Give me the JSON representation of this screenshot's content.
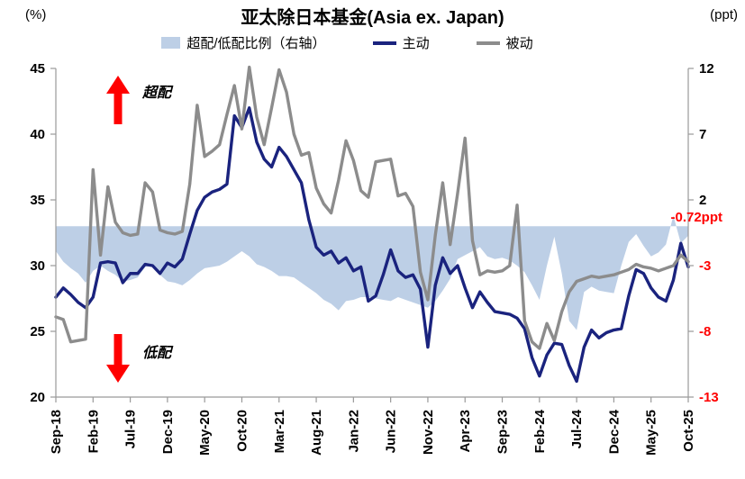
{
  "header": {
    "left_unit": "(%)",
    "title": "亚太除日本基金(Asia ex. Japan)",
    "right_unit": "(ppt)"
  },
  "legend": [
    {
      "label": "超配/低配比例（右轴）"
    },
    {
      "label": "主动"
    },
    {
      "label": "被动"
    }
  ],
  "annotations": {
    "overweight": "超配",
    "underweight": "低配",
    "latest_value": "-0.72ppt"
  },
  "colors": {
    "active_line": "#1A237E",
    "passive_line": "#8C8C8C",
    "ratio_area": "#BDCFE6",
    "red": "#FF0000",
    "axis": "#9A9A9A",
    "text": "#000000"
  },
  "chart_data": {
    "type": "line+area",
    "title": "亚太除日本基金(Asia ex. Japan)",
    "left_axis": {
      "unit": "%",
      "min": 20,
      "max": 45,
      "ticks": [
        20,
        25,
        30,
        35,
        40,
        45
      ]
    },
    "right_axis": {
      "unit": "ppt",
      "min": -13,
      "max": 12,
      "ticks": [
        -13,
        -8,
        -3,
        2,
        7,
        12
      ]
    },
    "x_label_every": 5,
    "x_tick_labels": [
      "Sep-18",
      "Feb-19",
      "Jul-19",
      "Dec-19",
      "May-20",
      "Oct-20",
      "Mar-21",
      "Aug-21",
      "Jan-22",
      "Jun-22",
      "Nov-22",
      "Apr-23",
      "Sep-23",
      "Feb-24",
      "Jul-24",
      "Dec-24",
      "May-25",
      "Oct-25"
    ],
    "categories": [
      "Sep-18",
      "Oct-18",
      "Nov-18",
      "Dec-18",
      "Jan-19",
      "Feb-19",
      "Mar-19",
      "Apr-19",
      "May-19",
      "Jun-19",
      "Jul-19",
      "Aug-19",
      "Sep-19",
      "Oct-19",
      "Nov-19",
      "Dec-19",
      "Jan-20",
      "Feb-20",
      "Mar-20",
      "Apr-20",
      "May-20",
      "Jun-20",
      "Jul-20",
      "Aug-20",
      "Sep-20",
      "Oct-20",
      "Nov-20",
      "Dec-20",
      "Jan-21",
      "Feb-21",
      "Mar-21",
      "Apr-21",
      "May-21",
      "Jun-21",
      "Jul-21",
      "Aug-21",
      "Sep-21",
      "Oct-21",
      "Nov-21",
      "Dec-21",
      "Jan-22",
      "Feb-22",
      "Mar-22",
      "Apr-22",
      "May-22",
      "Jun-22",
      "Jul-22",
      "Aug-22",
      "Sep-22",
      "Oct-22",
      "Nov-22",
      "Dec-22",
      "Jan-23",
      "Feb-23",
      "Mar-23",
      "Apr-23",
      "May-23",
      "Jun-23",
      "Jul-23",
      "Aug-23",
      "Sep-23",
      "Oct-23",
      "Nov-23",
      "Dec-23",
      "Jan-24",
      "Feb-24",
      "Mar-24",
      "Apr-24",
      "May-24",
      "Jun-24",
      "Jul-24",
      "Aug-24",
      "Sep-24",
      "Oct-24",
      "Nov-24",
      "Dec-24",
      "Jan-25",
      "Feb-25",
      "Mar-25",
      "Apr-25",
      "May-25",
      "Jun-25",
      "Jul-25",
      "Aug-25",
      "Sep-25",
      "Oct-25"
    ],
    "series": [
      {
        "name": "超配/低配比例（右轴）",
        "type": "area",
        "axis": "right",
        "color": "#BDCFE6",
        "values": [
          -1.9,
          -2.7,
          -3.2,
          -3.6,
          -4.3,
          -3.4,
          -3.0,
          -3.4,
          -3.7,
          -4.2,
          -4.1,
          -3.9,
          -3.1,
          -3.0,
          -3.7,
          -4.2,
          -4.3,
          -4.5,
          -4.1,
          -3.6,
          -3.2,
          -3.1,
          -3.0,
          -2.7,
          -2.3,
          -1.9,
          -2.3,
          -2.9,
          -3.1,
          -3.4,
          -3.8,
          -3.8,
          -3.9,
          -4.3,
          -4.7,
          -5.1,
          -5.6,
          -5.9,
          -6.4,
          -5.7,
          -5.6,
          -5.4,
          -5.4,
          -5.5,
          -5.6,
          -5.7,
          -5.4,
          -5.6,
          -5.8,
          -6.0,
          -6.2,
          -5.7,
          -4.9,
          -4.0,
          -2.5,
          -2.2,
          -1.9,
          -1.6,
          -2.3,
          -2.5,
          -2.4,
          -2.6,
          -3.0,
          -3.5,
          -4.5,
          -5.6,
          -3.0,
          -0.8,
          -3.6,
          -7.2,
          -7.9,
          -5.0,
          -4.6,
          -4.9,
          -5.0,
          -5.1,
          -3.0,
          -1.2,
          -0.6,
          -1.5,
          -2.3,
          -2.0,
          -1.4,
          0.8,
          -1.3,
          -0.72
        ]
      },
      {
        "name": "主动",
        "type": "line",
        "axis": "left",
        "color": "#1A237E",
        "values": [
          27.6,
          28.3,
          27.8,
          27.2,
          26.8,
          27.6,
          30.2,
          30.3,
          30.2,
          28.7,
          29.4,
          29.4,
          30.1,
          30.0,
          29.4,
          30.2,
          29.9,
          30.5,
          32.4,
          34.2,
          35.2,
          35.6,
          35.8,
          36.2,
          41.4,
          40.5,
          42.0,
          39.4,
          38.1,
          37.5,
          39.0,
          38.3,
          37.3,
          36.3,
          33.5,
          31.4,
          30.8,
          31.1,
          30.2,
          30.6,
          29.6,
          29.9,
          27.3,
          27.7,
          29.3,
          31.2,
          29.6,
          29.1,
          29.3,
          28.2,
          23.8,
          28.5,
          30.6,
          29.4,
          30.0,
          28.3,
          26.8,
          28.0,
          27.2,
          26.5,
          26.4,
          26.3,
          26.0,
          25.2,
          23.0,
          21.6,
          23.2,
          24.1,
          24.0,
          22.4,
          21.2,
          23.8,
          25.1,
          24.5,
          24.9,
          25.1,
          25.2,
          27.7,
          29.7,
          29.4,
          28.3,
          27.6,
          27.3,
          28.9,
          31.7,
          29.9
        ]
      },
      {
        "name": "被动",
        "type": "line",
        "axis": "left",
        "color": "#8C8C8C",
        "values": [
          26.1,
          25.9,
          24.2,
          24.3,
          24.4,
          37.3,
          30.8,
          36.0,
          33.3,
          32.5,
          32.3,
          32.4,
          36.3,
          35.6,
          32.7,
          32.5,
          32.4,
          32.6,
          36.2,
          42.2,
          38.3,
          38.7,
          39.2,
          41.5,
          43.7,
          40.4,
          45.1,
          41.3,
          39.2,
          42.0,
          44.9,
          43.2,
          40.0,
          38.4,
          38.6,
          35.9,
          34.7,
          34.0,
          36.5,
          39.5,
          38.0,
          35.7,
          35.2,
          37.9,
          38.0,
          38.1,
          35.3,
          35.5,
          34.5,
          29.5,
          27.4,
          32.3,
          36.3,
          31.6,
          35.5,
          39.7,
          31.9,
          29.3,
          29.6,
          29.5,
          29.6,
          30.0,
          34.6,
          25.8,
          24.2,
          23.7,
          25.6,
          24.3,
          26.5,
          28.0,
          28.8,
          29.0,
          29.2,
          29.1,
          29.2,
          29.3,
          29.5,
          29.7,
          30.1,
          29.9,
          29.8,
          29.6,
          29.8,
          30.0,
          30.8,
          30.3
        ]
      }
    ]
  }
}
